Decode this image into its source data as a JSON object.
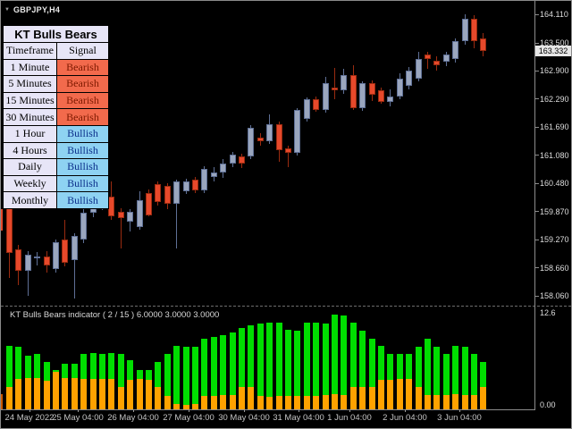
{
  "window": {
    "symbol_label": "GBPJPY,H4",
    "dropdown_marker": "▼"
  },
  "signal_table": {
    "title": "KT Bulls Bears",
    "columns": [
      "Timeframe",
      "Signal"
    ],
    "rows": [
      {
        "timeframe": "1 Minute",
        "signal": "Bearish"
      },
      {
        "timeframe": "5 Minutes",
        "signal": "Bearish"
      },
      {
        "timeframe": "15 Minutes",
        "signal": "Bearish"
      },
      {
        "timeframe": "30 Minutes",
        "signal": "Bearish"
      },
      {
        "timeframe": "1 Hour",
        "signal": "Bullish"
      },
      {
        "timeframe": "4 Hours",
        "signal": "Bullish"
      },
      {
        "timeframe": "Daily",
        "signal": "Bullish"
      },
      {
        "timeframe": "Weekly",
        "signal": "Bullish"
      },
      {
        "timeframe": "Monthly",
        "signal": "Bullish"
      }
    ]
  },
  "indicator_panel": {
    "label": "KT Bulls Bears indicator ( 2 / 15 ) 6.0000 3.0000 3.0000",
    "scale_max": "12.6",
    "scale_min": "0.00"
  },
  "colors": {
    "bull_body": "#9AA6BE",
    "bull_edge": "#5F7096",
    "bear_body": "#E7492B",
    "bear_edge": "#9A2B10",
    "bulls_hist": "#00DE00",
    "bears_hist": "#FFA200",
    "panel_bg": "#E7E5F7",
    "bearish_bg": "#F26A4C",
    "bearish_text": "#7E1A00",
    "bullish_bg": "#8ED2F2",
    "bullish_text": "#0B2F8A",
    "price_tag_bg": "#E6E6E6"
  },
  "chart_data": [
    {
      "type": "candlestick",
      "title": "GBPJPY,H4",
      "pane": "main",
      "grid": false,
      "y_axis": {
        "ticks": [
          164.11,
          163.5,
          162.9,
          162.29,
          161.69,
          161.08,
          160.48,
          159.87,
          159.27,
          158.66,
          158.06
        ],
        "current_price": 163.332,
        "current_price_label": "163.332"
      },
      "x_axis": {
        "labels": [
          "24 May 2022",
          "25 May 04:00",
          "26 May 04:00",
          "27 May 04:00",
          "30 May 04:00",
          "31 May 04:00",
          "1 Jun 04:00",
          "2 Jun 04:00",
          "3 Jun 04:00"
        ]
      },
      "ohlc": [
        [
          160.0,
          160.06,
          158.44,
          158.98
        ],
        [
          159.06,
          159.15,
          158.29,
          158.6
        ],
        [
          158.6,
          159.02,
          158.06,
          158.94
        ],
        [
          158.87,
          159.0,
          158.71,
          158.9
        ],
        [
          158.9,
          159.02,
          158.56,
          158.71
        ],
        [
          158.64,
          159.27,
          158.56,
          159.21
        ],
        [
          159.27,
          159.69,
          158.7,
          158.77
        ],
        [
          158.83,
          159.4,
          158.0,
          159.35
        ],
        [
          159.27,
          159.95,
          159.2,
          159.85
        ],
        [
          159.85,
          160.1,
          159.75,
          160.02
        ],
        [
          160.02,
          160.3,
          159.9,
          160.19
        ],
        [
          160.19,
          160.52,
          159.7,
          159.77
        ],
        [
          159.87,
          159.95,
          159.08,
          159.73
        ],
        [
          159.66,
          159.92,
          159.44,
          159.87
        ],
        [
          159.54,
          160.31,
          159.48,
          160.12
        ],
        [
          160.27,
          160.34,
          159.77,
          159.79
        ],
        [
          160.46,
          160.52,
          160.0,
          160.08
        ],
        [
          160.42,
          160.48,
          159.92,
          160.04
        ],
        [
          160.04,
          160.56,
          159.08,
          160.52
        ],
        [
          160.31,
          160.58,
          160.25,
          160.52
        ],
        [
          160.56,
          160.62,
          160.27,
          160.33
        ],
        [
          160.33,
          160.85,
          160.27,
          160.79
        ],
        [
          160.62,
          160.83,
          160.52,
          160.71
        ],
        [
          160.71,
          161.0,
          160.6,
          160.9
        ],
        [
          160.9,
          161.15,
          160.83,
          161.1
        ],
        [
          161.06,
          161.12,
          160.81,
          160.9
        ],
        [
          161.06,
          161.73,
          161.0,
          161.67
        ],
        [
          161.46,
          161.56,
          161.29,
          161.39
        ],
        [
          161.39,
          161.96,
          161.33,
          161.75
        ],
        [
          161.75,
          161.81,
          160.94,
          161.19
        ],
        [
          161.23,
          161.29,
          160.83,
          161.14
        ],
        [
          161.14,
          162.1,
          161.08,
          162.06
        ],
        [
          161.87,
          162.33,
          161.81,
          162.29
        ],
        [
          162.29,
          162.35,
          162.02,
          162.06
        ],
        [
          162.06,
          162.77,
          162.0,
          162.63
        ],
        [
          162.54,
          162.96,
          162.29,
          162.48
        ],
        [
          162.48,
          162.94,
          162.4,
          162.81
        ],
        [
          162.81,
          163.02,
          162.06,
          162.1
        ],
        [
          162.1,
          162.67,
          162.04,
          162.63
        ],
        [
          162.63,
          162.69,
          162.25,
          162.39
        ],
        [
          162.48,
          162.54,
          162.19,
          162.23
        ],
        [
          162.23,
          162.5,
          162.13,
          162.35
        ],
        [
          162.35,
          162.85,
          162.29,
          162.73
        ],
        [
          162.58,
          162.98,
          162.5,
          162.9
        ],
        [
          162.73,
          163.31,
          162.67,
          163.15
        ],
        [
          163.25,
          163.31,
          162.94,
          163.15
        ],
        [
          163.12,
          163.21,
          162.9,
          163.02
        ],
        [
          163.1,
          163.31,
          163.0,
          163.25
        ],
        [
          163.15,
          163.6,
          163.08,
          163.54
        ],
        [
          163.54,
          164.11,
          163.46,
          164.02
        ],
        [
          164.02,
          164.1,
          163.38,
          163.54
        ],
        [
          163.6,
          163.71,
          163.21,
          163.33
        ]
      ]
    },
    {
      "type": "bar",
      "title": "KT Bulls Bears indicator ( 2 / 15 ) 6.0000 3.0000 3.0000",
      "pane": "sub",
      "ylim": [
        0,
        12.6
      ],
      "series": [
        {
          "name": "Bulls",
          "color": "#00DE00",
          "values": [
            8.1,
            8.0,
            6.9,
            7.1,
            6.1,
            5.0,
            5.8,
            5.8,
            7.1,
            7.2,
            7.1,
            7.2,
            7.1,
            6.3,
            5.0,
            5.0,
            6.1,
            7.1,
            8.1,
            8.0,
            8.0,
            9.0,
            9.3,
            9.5,
            9.8,
            10.4,
            10.8,
            11.0,
            11.1,
            11.1,
            10.2,
            10.1,
            11.1,
            11.1,
            11.0,
            12.1,
            12.0,
            11.1,
            10.1,
            9.0,
            8.1,
            7.1,
            7.1,
            7.1,
            8.0,
            9.0,
            8.0,
            7.1,
            8.1,
            8.0,
            7.1,
            6.1
          ]
        },
        {
          "name": "Bears",
          "color": "#FFA200",
          "values": [
            2.9,
            3.9,
            4.0,
            4.0,
            3.7,
            4.8,
            4.0,
            4.0,
            3.9,
            3.9,
            3.9,
            3.9,
            2.9,
            3.8,
            3.9,
            3.8,
            2.9,
            1.7,
            0.7,
            0.6,
            0.7,
            1.7,
            1.7,
            1.8,
            1.8,
            2.9,
            2.9,
            1.7,
            1.6,
            1.7,
            1.7,
            1.7,
            1.7,
            1.7,
            1.8,
            1.9,
            1.8,
            2.9,
            2.9,
            2.9,
            3.8,
            3.8,
            3.9,
            3.9,
            2.9,
            1.8,
            1.8,
            1.8,
            1.9,
            1.8,
            1.8,
            2.9
          ]
        }
      ]
    }
  ]
}
